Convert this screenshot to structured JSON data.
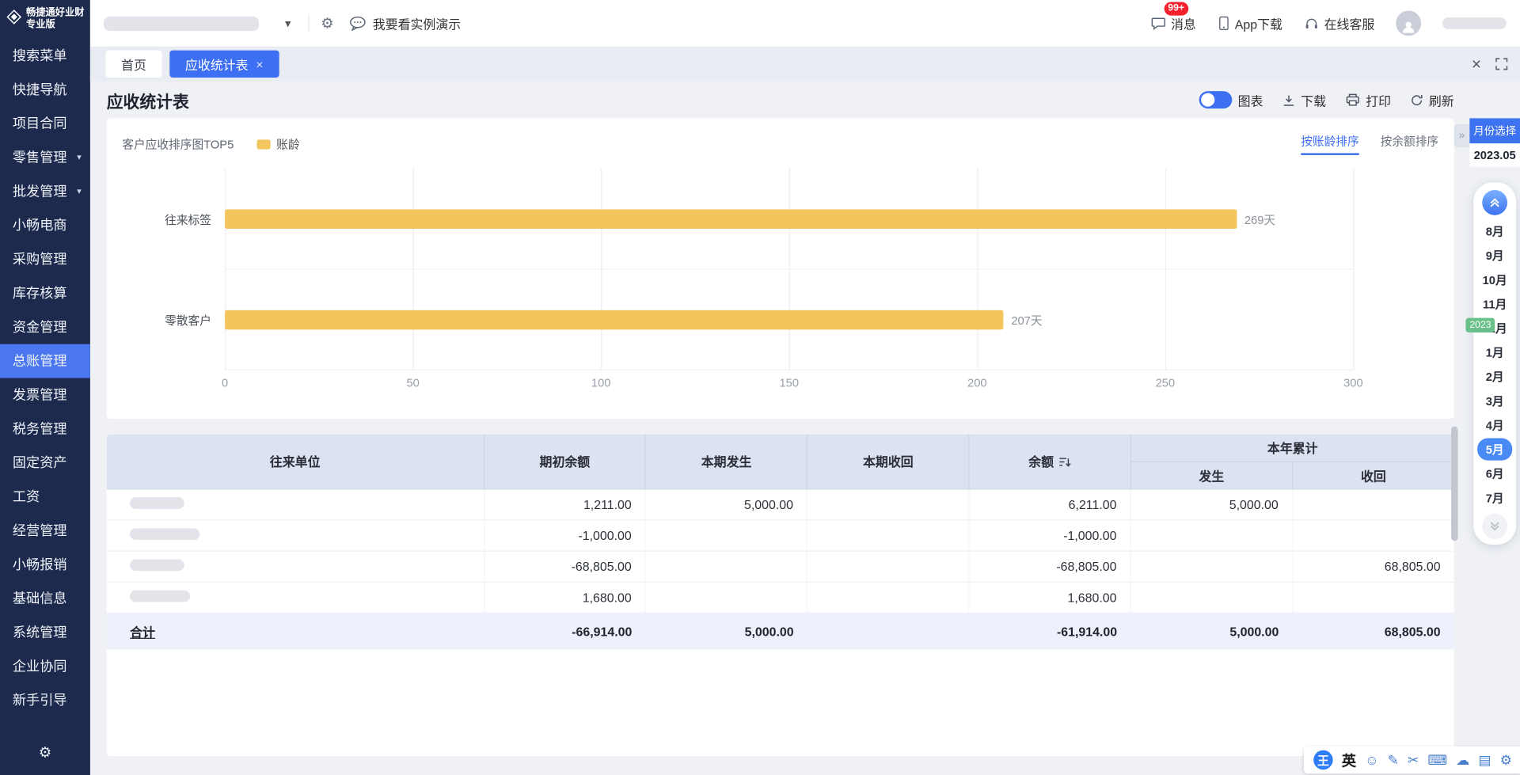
{
  "brand": {
    "line1": "畅捷通好业财",
    "line2": "专业版"
  },
  "icons": {
    "chevron_down": "▾",
    "gear": "⚙",
    "close": "×",
    "collapse": "»"
  },
  "sidebar": {
    "items": [
      {
        "label": "搜索菜单"
      },
      {
        "label": "快捷导航"
      },
      {
        "label": "项目合同"
      },
      {
        "label": "零售管理",
        "arrow": true
      },
      {
        "label": "批发管理",
        "arrow": true
      },
      {
        "label": "小畅电商"
      },
      {
        "label": "采购管理"
      },
      {
        "label": "库存核算"
      },
      {
        "label": "资金管理"
      },
      {
        "label": "总账管理",
        "active": true
      },
      {
        "label": "发票管理"
      },
      {
        "label": "税务管理"
      },
      {
        "label": "固定资产"
      },
      {
        "label": "工资"
      },
      {
        "label": "经营管理"
      },
      {
        "label": "小畅报销"
      },
      {
        "label": "基础信息"
      },
      {
        "label": "系统管理"
      },
      {
        "label": "企业协同"
      },
      {
        "label": "新手引导"
      }
    ]
  },
  "topbar": {
    "demo": "我要看实例演示",
    "messages": "消息",
    "messages_badge": "99+",
    "app_download": "App下载",
    "online_service": "在线客服"
  },
  "tabs": {
    "home": "首页",
    "active": "应收统计表"
  },
  "page": {
    "title": "应收统计表",
    "chart_toggle": "图表",
    "download": "下载",
    "print": "打印",
    "refresh": "刷新"
  },
  "chart_header": {
    "title": "客户应收排序图TOP5",
    "legend": "账龄",
    "sort_aging": "按账龄排序",
    "sort_balance": "按余额排序"
  },
  "chart_data": {
    "type": "bar",
    "orientation": "horizontal",
    "title": "客户应收排序图TOP5",
    "legend": [
      "账龄"
    ],
    "categories": [
      "往来标签",
      "零散客户"
    ],
    "values": [
      269,
      207
    ],
    "value_labels": [
      "269天",
      "207天"
    ],
    "unit": "天",
    "xlim": [
      0,
      300
    ],
    "x_ticks": [
      0,
      50,
      100,
      150,
      200,
      250,
      300
    ],
    "bar_color": "#F2C65C",
    "grid": true,
    "legend_position": "top"
  },
  "table": {
    "col_headers": [
      "往来单位",
      "期初余额",
      "本期发生",
      "本期收回",
      "余额"
    ],
    "year_group": {
      "label": "本年累计",
      "sub": [
        "发生",
        "收回"
      ]
    },
    "rows": [
      {
        "name_redacted": true,
        "cells": [
          "1,211.00",
          "5,000.00",
          "",
          "6,211.00",
          "5,000.00",
          ""
        ]
      },
      {
        "name_redacted": true,
        "cells": [
          "-1,000.00",
          "",
          "",
          "-1,000.00",
          "",
          ""
        ]
      },
      {
        "name_redacted": true,
        "cells": [
          "-68,805.00",
          "",
          "",
          "-68,805.00",
          "",
          "68,805.00"
        ]
      },
      {
        "name_redacted": true,
        "cells": [
          "1,680.00",
          "",
          "",
          "1,680.00",
          "",
          ""
        ]
      }
    ],
    "total": {
      "label": "合计",
      "cells": [
        "-66,914.00",
        "5,000.00",
        "",
        "-61,914.00",
        "5,000.00",
        "68,805.00"
      ]
    }
  },
  "month_panel": {
    "title": "月份选择",
    "current": "2023.05",
    "year_badge": "2023",
    "months": [
      "8月",
      "9月",
      "10月",
      "11月",
      "12月",
      "1月",
      "2月",
      "3月",
      "4月",
      "5月",
      "6月",
      "7月"
    ],
    "active_index": 9
  },
  "ime": {
    "logo": "王",
    "lang": "英",
    "icons": [
      "☺",
      "✎",
      "✂",
      "⌨",
      "☁",
      "▤",
      "⚙"
    ]
  },
  "colors": {
    "accent": "#3D6FF2",
    "sidebar": "#1E2A4D",
    "bar": "#F2C65C",
    "badge_red": "#F5222D",
    "badge_green": "#69C08B",
    "table_header": "#DDE2F3"
  }
}
